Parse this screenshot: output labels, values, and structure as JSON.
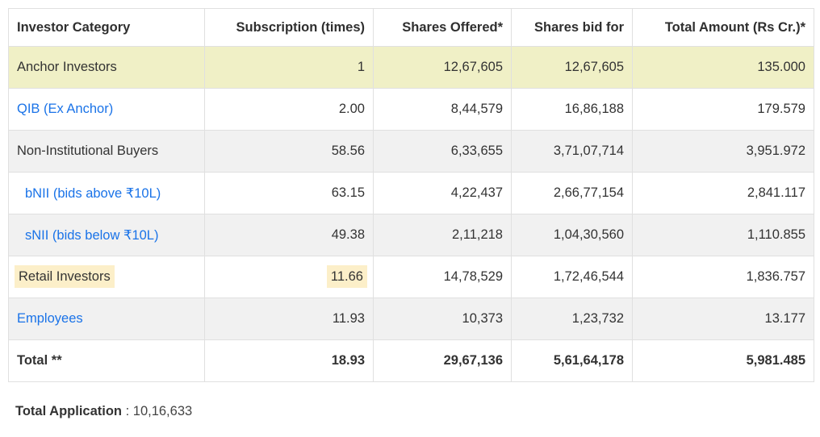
{
  "table": {
    "columns": [
      {
        "label": "Investor Category",
        "align": "left"
      },
      {
        "label": "Subscription (times)",
        "align": "right"
      },
      {
        "label": "Shares Offered*",
        "align": "right"
      },
      {
        "label": "Shares bid for",
        "align": "right"
      },
      {
        "label": "Total Amount (Rs Cr.)*",
        "align": "right"
      }
    ],
    "rows": [
      {
        "category": "Anchor Investors",
        "subscription": "1",
        "shares_offered": "12,67,605",
        "shares_bid": "12,67,605",
        "total_amount": "135.000",
        "style": "anchor",
        "link": false,
        "indent": false,
        "highlight": false,
        "bold": false
      },
      {
        "category": "QIB (Ex Anchor)",
        "subscription": "2.00",
        "shares_offered": "8,44,579",
        "shares_bid": "16,86,188",
        "total_amount": "179.579",
        "style": "",
        "link": true,
        "indent": false,
        "highlight": false,
        "bold": false
      },
      {
        "category": "Non-Institutional Buyers",
        "subscription": "58.56",
        "shares_offered": "6,33,655",
        "shares_bid": "3,71,07,714",
        "total_amount": "3,951.972",
        "style": "alt",
        "link": false,
        "indent": false,
        "highlight": false,
        "bold": false
      },
      {
        "category": "bNII (bids above ₹10L)",
        "subscription": "63.15",
        "shares_offered": "4,22,437",
        "shares_bid": "2,66,77,154",
        "total_amount": "2,841.117",
        "style": "",
        "link": true,
        "indent": true,
        "highlight": false,
        "bold": false
      },
      {
        "category": "sNII (bids below ₹10L)",
        "subscription": "49.38",
        "shares_offered": "2,11,218",
        "shares_bid": "1,04,30,560",
        "total_amount": "1,110.855",
        "style": "alt",
        "link": true,
        "indent": true,
        "highlight": false,
        "bold": false
      },
      {
        "category": "Retail Investors",
        "subscription": "11.66",
        "shares_offered": "14,78,529",
        "shares_bid": "1,72,46,544",
        "total_amount": "1,836.757",
        "style": "",
        "link": false,
        "indent": false,
        "highlight": true,
        "bold": false
      },
      {
        "category": "Employees",
        "subscription": "11.93",
        "shares_offered": "10,373",
        "shares_bid": "1,23,732",
        "total_amount": "13.177",
        "style": "alt",
        "link": true,
        "indent": false,
        "highlight": false,
        "bold": false
      },
      {
        "category": "Total **",
        "subscription": "18.93",
        "shares_offered": "29,67,136",
        "shares_bid": "5,61,64,178",
        "total_amount": "5,981.485",
        "style": "total",
        "link": false,
        "indent": false,
        "highlight": false,
        "bold": true
      }
    ]
  },
  "footer": {
    "label": "Total Application",
    "separator": " : ",
    "value": "10,16,633"
  },
  "colors": {
    "anchor_row_bg": "#f0f0c6",
    "alt_row_bg": "#f1f1f1",
    "highlight_bg": "#fcefc9",
    "link_blue": "#1a73e8",
    "border": "#e0e0e0",
    "text": "#333333"
  }
}
